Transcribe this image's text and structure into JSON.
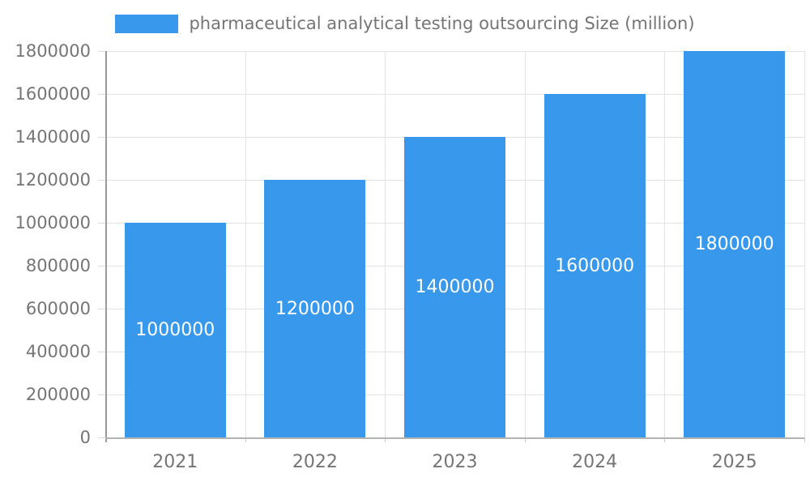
{
  "chart_data": {
    "type": "bar",
    "title": "pharmaceutical analytical testing outsourcing Size (million)",
    "legend": {
      "position": "top",
      "label": "pharmaceutical analytical testing outsourcing Size (million)"
    },
    "categories": [
      "2021",
      "2022",
      "2023",
      "2024",
      "2025"
    ],
    "values": [
      1000000,
      1200000,
      1400000,
      1600000,
      1800000
    ],
    "value_labels": [
      "1000000",
      "1200000",
      "1400000",
      "1600000",
      "1800000"
    ],
    "xlabel": "",
    "ylabel": "",
    "ylim": [
      0,
      1800000
    ],
    "ytick_step": 200000,
    "ytick_labels": [
      "0",
      "200000",
      "400000",
      "600000",
      "800000",
      "1000000",
      "1200000",
      "1400000",
      "1600000",
      "1800000"
    ],
    "grid": true,
    "colors": {
      "bar": "#3898EC",
      "value_label": "#ffffff",
      "axis_text": "#757575",
      "gridline": "#e3e3e3",
      "y_axis_line": "#999999",
      "x_axis_line": "#b3b3b3"
    }
  }
}
